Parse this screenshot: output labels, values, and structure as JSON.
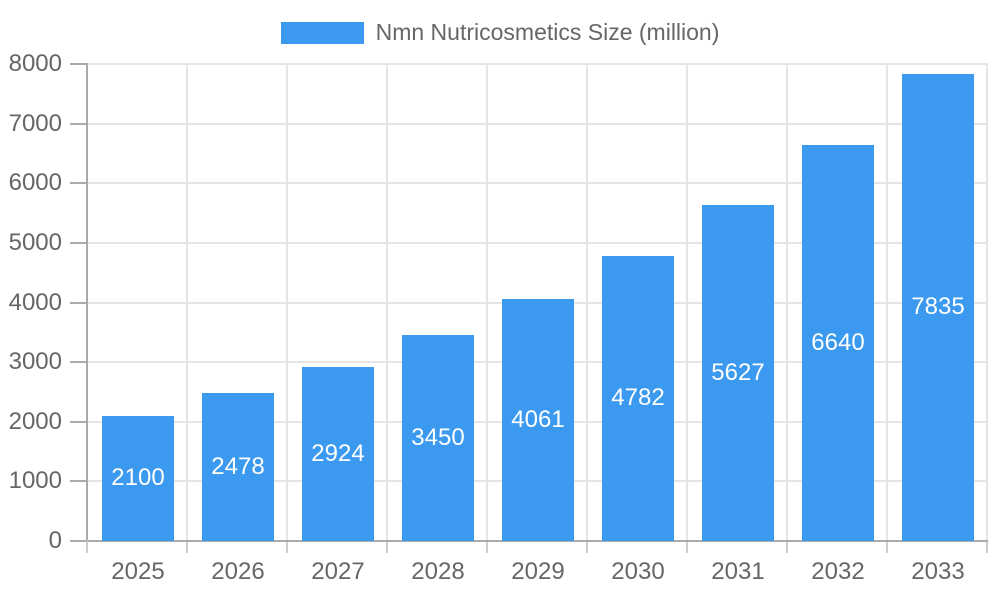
{
  "chart_data": {
    "type": "bar",
    "title": "",
    "legend_position": "top",
    "grid": true,
    "categories": [
      "2025",
      "2026",
      "2027",
      "2028",
      "2029",
      "2030",
      "2031",
      "2032",
      "2033"
    ],
    "series": [
      {
        "name": "Nmn Nutricosmetics Size (million)",
        "values": [
          2100,
          2478,
          2924,
          3450,
          4061,
          4782,
          5627,
          6640,
          7835
        ]
      }
    ],
    "value_labels_shown": true,
    "xlabel": "",
    "ylabel": "",
    "ylim": [
      0,
      8000
    ],
    "ytick_step": 1000,
    "colors": {
      "bar": "#3b9af0",
      "axis_text": "#666666",
      "value_label": "#ffffff",
      "grid_line": "#e5e5e5",
      "axis_line": "#aaaaaa",
      "category_tick": "#cccccc"
    }
  }
}
